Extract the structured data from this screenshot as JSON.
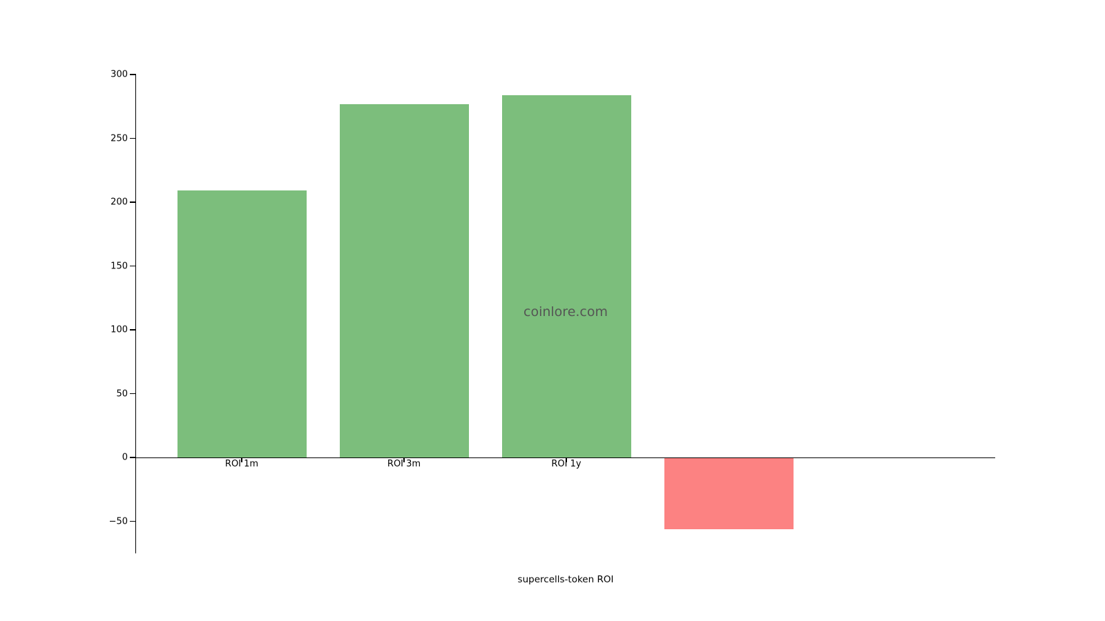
{
  "chart_data": {
    "type": "bar",
    "title": "supercells-token ROI",
    "watermark": "coinlore.com",
    "categories": [
      "ROI 1m",
      "ROI 3m",
      "ROI 1y",
      ""
    ],
    "values": [
      209,
      277,
      284,
      -56
    ],
    "bar_colors": [
      "#7cbe7c",
      "#7cbe7c",
      "#7cbe7c",
      "#fc8282"
    ],
    "positive_color": "#7cbe7c",
    "negative_color": "#fc8282",
    "yticks": [
      300,
      250,
      200,
      150,
      100,
      50,
      0,
      -50
    ],
    "ylim": [
      -75,
      301
    ],
    "xlabel": "",
    "ylabel": "",
    "grid": false,
    "legend": null,
    "axis_color": "#000000",
    "watermark_color": "#555555"
  }
}
